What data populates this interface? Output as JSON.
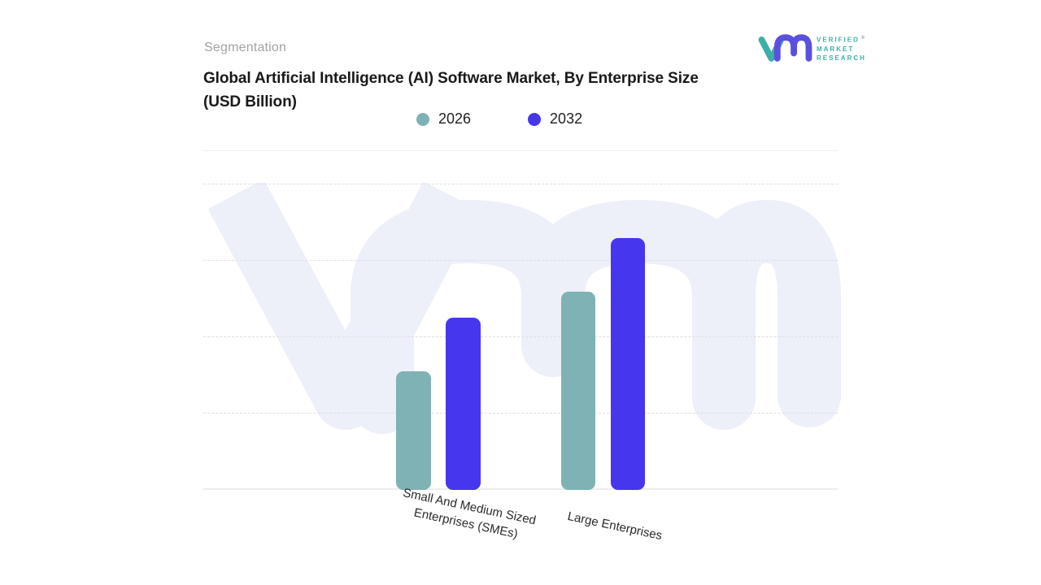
{
  "header": {
    "eyebrow": "Segmentation",
    "title_line1": "Global Artificial Intelligence (AI) Software Market, By Enterprise Size",
    "title_line2": "(USD Billion)"
  },
  "logo": {
    "line1": "VERIFIED",
    "registered": "®",
    "line2": "MARKET",
    "line3": "RESEARCH"
  },
  "chart_data": {
    "type": "bar",
    "title": "Global Artificial Intelligence (AI) Software Market, By Enterprise Size (USD Billion)",
    "categories": [
      "Small And Medium Sized Enterprises (SMEs)",
      "Large Enterprises"
    ],
    "series": [
      {
        "name": "2026",
        "color": "#7fb2b4",
        "values": [
          1.55,
          2.6
        ]
      },
      {
        "name": "2032",
        "color": "#4636ee",
        "values": [
          2.25,
          3.3
        ]
      }
    ],
    "xlabel": "",
    "ylabel": "",
    "ylim": [
      0,
      4
    ],
    "y_tick_labels_visible": false,
    "gridlines": "horizontal-dashed",
    "legend_position": "top-center"
  },
  "colors": {
    "series_2026": "#7fb2b4",
    "series_2032": "#4636ee",
    "watermark": "#edeff9",
    "gridline": "#dfdfe4",
    "axis_line": "#ececec",
    "separator": "#efefef",
    "title_text": "#191919",
    "eyebrow_text": "#a2a2a2",
    "logo_teal": "#3cb0a8",
    "logo_purple": "#5a50e0"
  }
}
